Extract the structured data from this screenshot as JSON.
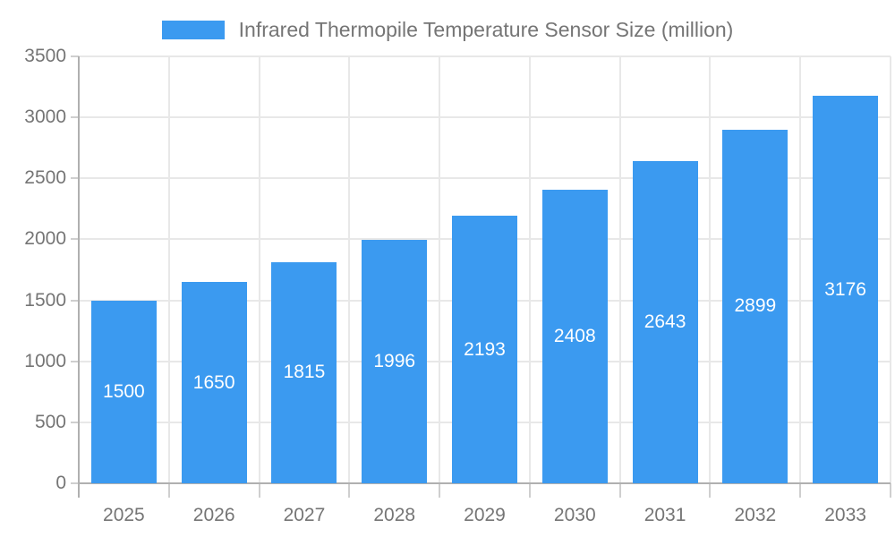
{
  "chart_data": {
    "type": "bar",
    "title": "Infrared Thermopile Temperature Sensor Size (million)",
    "categories": [
      "2025",
      "2026",
      "2027",
      "2028",
      "2029",
      "2030",
      "2031",
      "2032",
      "2033"
    ],
    "values": [
      1500,
      1650,
      1815,
      1996,
      2193,
      2408,
      2643,
      2899,
      3176
    ],
    "xlabel": "",
    "ylabel": "",
    "ylim": [
      0,
      3500
    ],
    "ytick_step": 500,
    "ytick_labels": [
      "0",
      "500",
      "1000",
      "1500",
      "2000",
      "2500",
      "3000",
      "3500"
    ],
    "grid": true,
    "legend_position": "top",
    "bar_labels_inside": true
  },
  "colors": {
    "bar": "#3B9AF0",
    "text": "#757575",
    "gridline": "#E8E8E8",
    "axis_line": "#B0B0B0",
    "tick": "#CFCFCF",
    "value_label": "#FFFFFF",
    "background": "#FFFFFF"
  }
}
